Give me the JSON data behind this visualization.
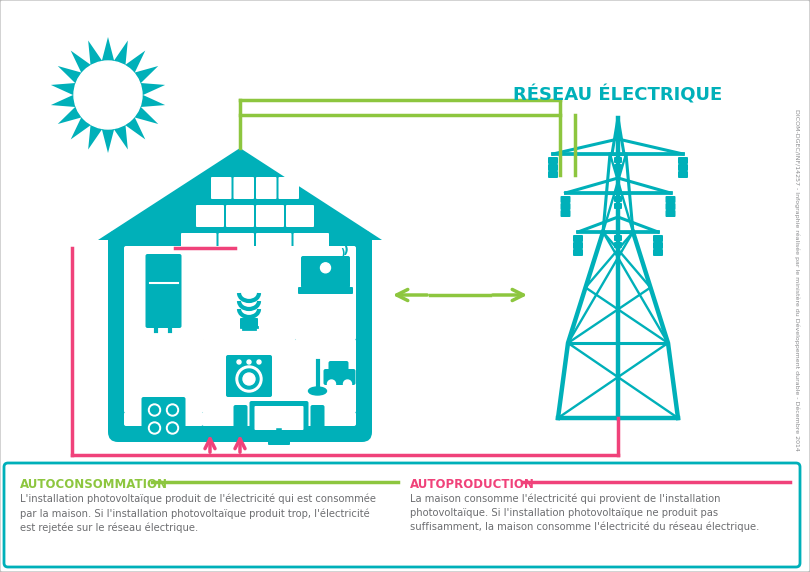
{
  "bg_color": "#ffffff",
  "teal": "#00b0b9",
  "green": "#8dc63f",
  "pink": "#f0427a",
  "gray_text": "#6d6e71",
  "title_reseau": "RÉSEAU ÉLECTRIQUE",
  "autoconso_title": "AUTOCONSOMMATION",
  "autoprod_title": "AUTOPRODUCTION",
  "autoconso_text": "L'installation photovoltaïque produit de l'électricité qui est consommée\npar la maison. Si l'installation photovoltaïque produit trop, l'électricité\nest rejetée sur le réseau électrique.",
  "autoprod_text": "La maison consomme l'électricité qui provient de l'installation\nphotovoltaïque. Si l'installation photovoltaïque ne produit pas\nsuffisamment, la maison consomme l'électricité du réseau électrique.",
  "sidebar_text": "DICOM-DGEC/INF/14257 - Infographie réalisée par le ministère du Développement durable - Décembre 2014",
  "figsize": [
    8.1,
    5.72
  ],
  "dpi": 100
}
